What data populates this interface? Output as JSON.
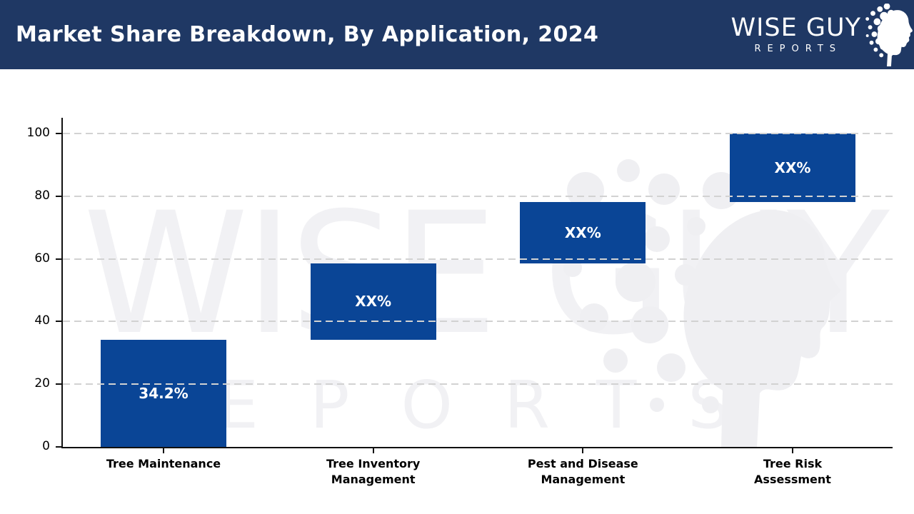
{
  "header": {
    "title": "Market Share Breakdown, By Application, 2024",
    "logo": {
      "line1": "WISE GUY",
      "line2": "REPORTS"
    }
  },
  "watermark": {
    "line1": "WISE GUY",
    "line2": "REPORTS"
  },
  "chart_data": {
    "type": "bar",
    "subtype": "waterfall",
    "title": "Market Share Breakdown, By Application, 2024",
    "categories": [
      "Tree Maintenance",
      "Tree Inventory\nManagement",
      "Pest and Disease\nManagement",
      "Tree Risk\nAssessment"
    ],
    "series": [
      {
        "name": "Market Share",
        "segments": [
          {
            "start": 0,
            "end": 34.2,
            "label": "34.2%"
          },
          {
            "start": 34.2,
            "end": 58.6,
            "label": "XX%"
          },
          {
            "start": 58.6,
            "end": 78.2,
            "label": "XX%"
          },
          {
            "start": 78.2,
            "end": 100,
            "label": "XX%"
          }
        ]
      }
    ],
    "ylim": [
      0,
      100
    ],
    "y_ticks": [
      "0",
      "20",
      "40",
      "60",
      "80",
      "100"
    ],
    "xlabel": "",
    "ylabel": "",
    "grid": "horizontal-dashed",
    "legend": "none",
    "bar_color": "#0a4596",
    "bar_label_color": "#ffffff"
  },
  "colors": {
    "header_bg": "#1f3864",
    "bar": "#0a4596",
    "grid": "#d2d2d2",
    "axis": "#111111",
    "watermark": "#f1f1f4"
  }
}
